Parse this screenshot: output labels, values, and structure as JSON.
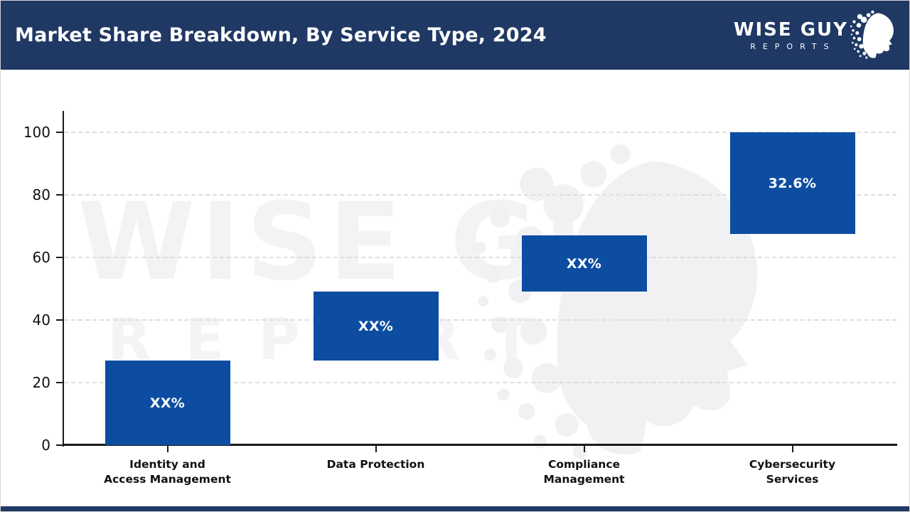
{
  "header": {
    "title": "Market Share Breakdown, By Service Type, 2024"
  },
  "logo": {
    "line1": "WISE GUY",
    "line2": "REPORTS"
  },
  "watermark": {
    "line1": "WISE GUY",
    "line2": "REPORTS"
  },
  "colors": {
    "header_bg": "#1F3864",
    "bar": "#0C4DA2",
    "grid": "#DEDEDE",
    "axis": "#1A1A1A",
    "watermark": "#F3F3F6"
  },
  "chart_data": {
    "type": "bar",
    "subtype": "waterfall",
    "title": "Market Share Breakdown, By Service Type, 2024",
    "categories": [
      [
        "Identity and",
        "Access Management"
      ],
      [
        "Data Protection"
      ],
      [
        "Compliance",
        "Management"
      ],
      [
        "Cybersecurity",
        "Services"
      ]
    ],
    "segments": [
      {
        "category": "Identity and Access Management",
        "start": 0,
        "end": 27,
        "label": "XX%"
      },
      {
        "category": "Data Protection",
        "start": 27,
        "end": 49,
        "label": "XX%"
      },
      {
        "category": "Compliance Management",
        "start": 49,
        "end": 67,
        "label": "XX%"
      },
      {
        "category": "Cybersecurity Services",
        "start": 67.4,
        "end": 100,
        "label": "32.6%"
      }
    ],
    "ylim": [
      0,
      100
    ],
    "yticks": [
      0,
      20,
      40,
      60,
      80,
      100
    ],
    "grid": "horizontal-dashed",
    "legend": "none",
    "bar_color": "#0C4DA2",
    "value_labels_inside_bars": true
  }
}
